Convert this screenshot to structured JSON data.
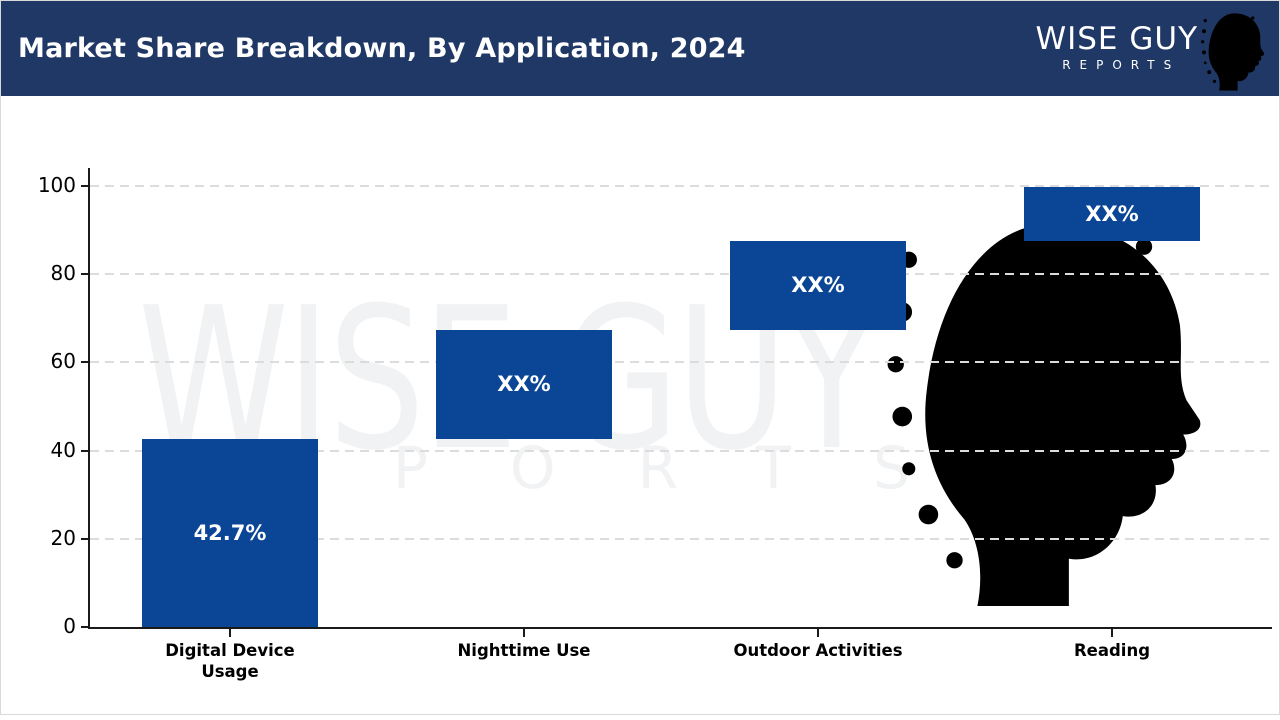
{
  "header": {
    "title": "Market Share Breakdown, By Application, 2024",
    "bg_color": "#203865"
  },
  "logo": {
    "name_line": "WISE GUY",
    "sub_line": "REPORTS"
  },
  "watermark": {
    "line1": "WISE GUY",
    "line2": "REPORTS"
  },
  "chart_data": {
    "type": "bar",
    "subtype": "waterfall-floating-bars",
    "title": "Market Share Breakdown, By Application, 2024",
    "categories": [
      [
        "Digital Device",
        "Usage"
      ],
      [
        "Nighttime Use"
      ],
      [
        "Outdoor Activities"
      ],
      [
        "Reading"
      ]
    ],
    "segments": [
      {
        "category": "Digital Device Usage",
        "start": 0,
        "end": 42.7,
        "label": "42.7%"
      },
      {
        "category": "Nighttime Use",
        "start": 42.7,
        "end": 67.3,
        "label": "XX%"
      },
      {
        "category": "Outdoor Activities",
        "start": 67.3,
        "end": 87.6,
        "label": "XX%"
      },
      {
        "category": "Reading",
        "start": 87.6,
        "end": 99.7,
        "label": "XX%"
      }
    ],
    "yticks": [
      0,
      20,
      40,
      60,
      80,
      100
    ],
    "ylim": [
      0,
      105
    ],
    "xlabel": "",
    "ylabel": "",
    "bar_color": "#0a4596",
    "grid": {
      "axis": "y",
      "style": "dashed",
      "color": "#dcdcdc"
    },
    "legend": null
  }
}
